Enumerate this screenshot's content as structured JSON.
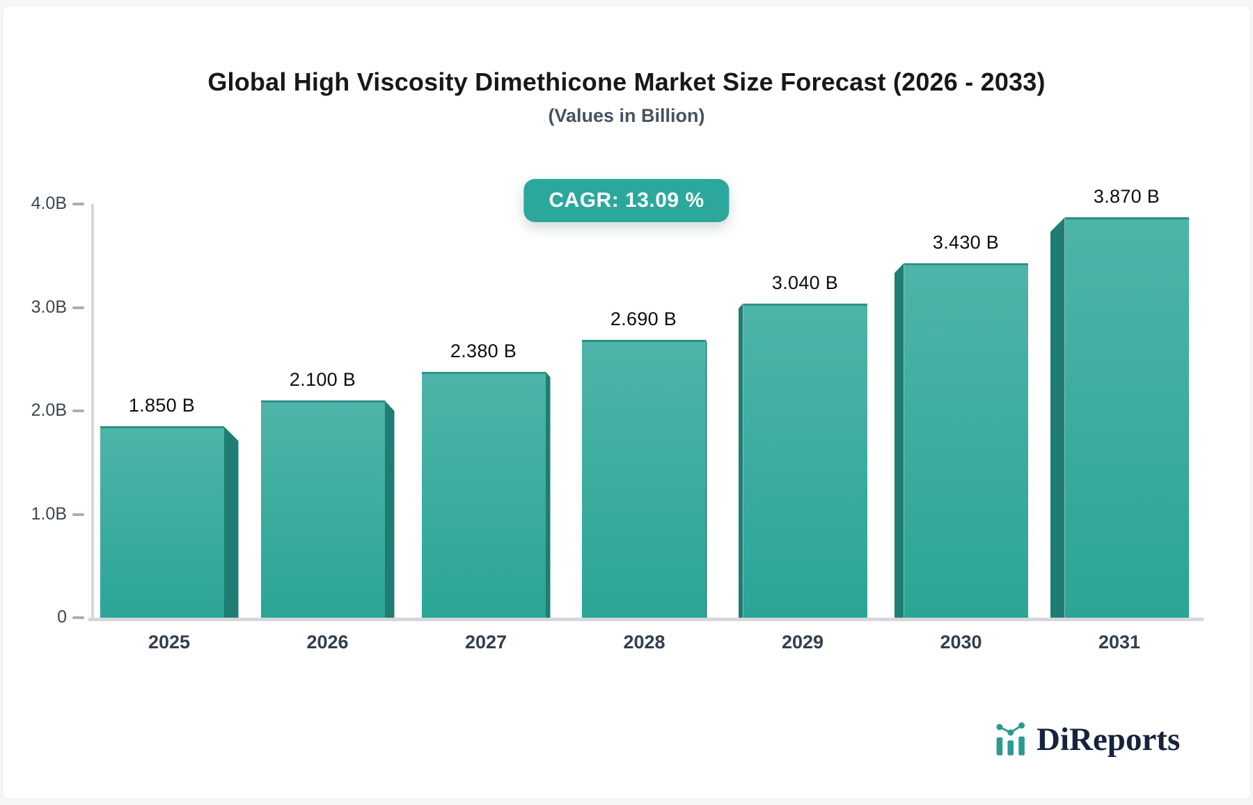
{
  "page": {
    "background": "#f4f6f8",
    "card_background": "#ffffff"
  },
  "header": {
    "title": "Global High Viscosity Dimethicone Market Size Forecast (2026 - 2033)",
    "subtitle": "(Values in Billion)"
  },
  "badge": {
    "label": "CAGR: 13.09 %",
    "background": "#2ba89b",
    "text_color": "#ffffff"
  },
  "chart_data": {
    "type": "bar",
    "title": "Global High Viscosity Dimethicone Market Size Forecast (2026 - 2033)",
    "subtitle": "(Values in Billion)",
    "categories": [
      "2025",
      "2026",
      "2027",
      "2028",
      "2029",
      "2030",
      "2031"
    ],
    "values": [
      1.85,
      2.1,
      2.38,
      2.69,
      3.04,
      3.43,
      3.87
    ],
    "bar_value_labels": [
      "1.850 B",
      "2.100 B",
      "2.380 B",
      "2.690 B",
      "3.040 B",
      "3.430 B",
      "3.870 B"
    ],
    "xlabel": "",
    "ylabel": "",
    "ylim": [
      0,
      4.0
    ],
    "yticks": [
      {
        "label": "4.0B",
        "value": 4.0
      },
      {
        "label": "3.0B",
        "value": 3.0
      },
      {
        "label": "2.0B",
        "value": 2.0
      },
      {
        "label": "1.0B",
        "value": 1.0
      },
      {
        "label": "0",
        "value": 0.0
      }
    ],
    "grid": false,
    "legend": false,
    "bar_style": {
      "face_top": "#4db4a8",
      "face_bottom": "#2aa596",
      "side": "#1f7d73",
      "top_edge": "#2f9086",
      "effect": "3d-perspective"
    },
    "axis_color": "#d5d7dc",
    "tick_color": "#a9aeb7",
    "tick_label_color": "#3c4653",
    "category_label_color": "#333e4d",
    "value_label_color": "#0d0d0d"
  },
  "logo": {
    "text": "DiReports",
    "color": "#16233c",
    "icon": "bar-line-chart-icon",
    "icon_color": "#2b9b91"
  }
}
